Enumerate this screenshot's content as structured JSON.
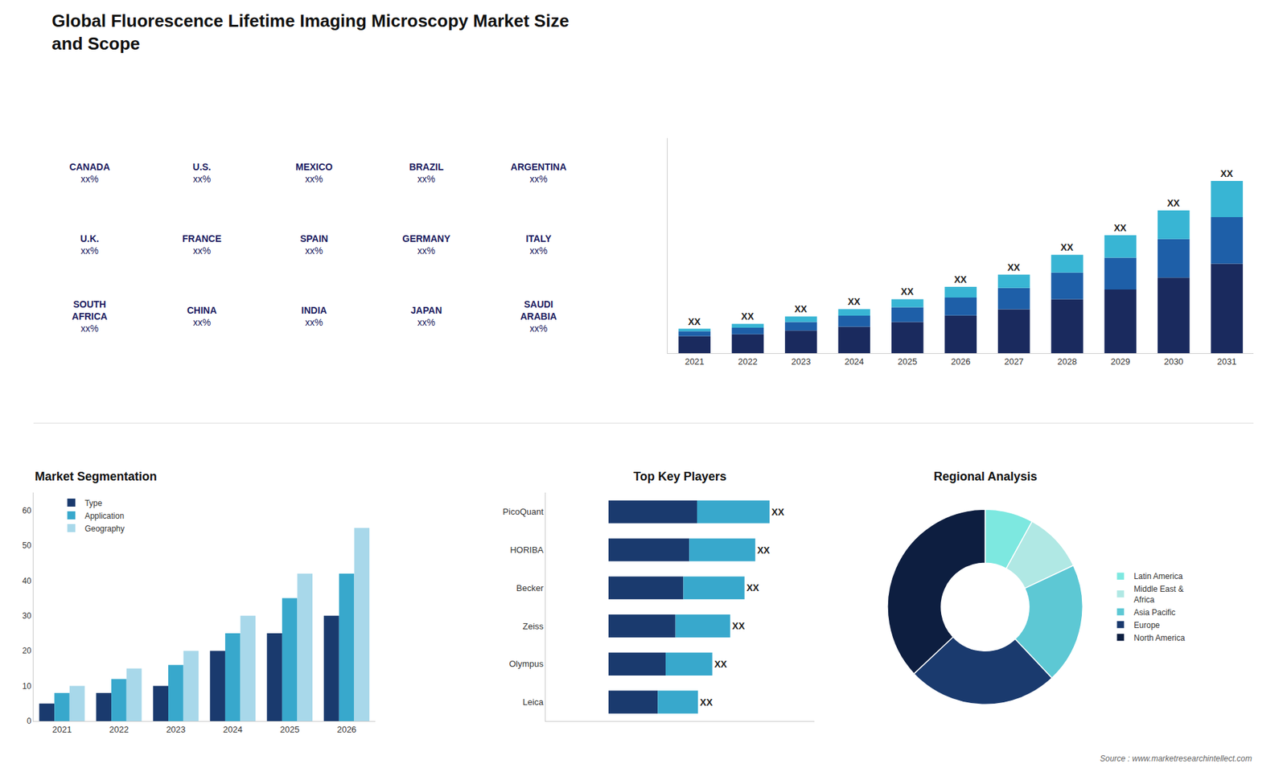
{
  "title": "Global Fluorescence Lifetime Imaging Microscopy Market Size\nand Scope",
  "annotations": [
    "Source : www.marketresearchintellect.com"
  ],
  "chart_data": [
    {
      "type": "map",
      "categories": [
        "CANADA",
        "U.S.",
        "MEXICO",
        "BRAZIL",
        "ARGENTINA",
        "U.K.",
        "FRANCE",
        "SPAIN",
        "GERMANY",
        "ITALY",
        "SOUTH\nAFRICA",
        "CHINA",
        "INDIA",
        "JAPAN",
        "SAUDI\nARABIA"
      ],
      "value_labels": [
        "xx%",
        "xx%",
        "xx%",
        "xx%",
        "xx%",
        "xx%",
        "xx%",
        "xx%",
        "xx%",
        "xx%",
        "xx%",
        "xx%",
        "xx%",
        "xx%",
        "xx%"
      ],
      "tick_labels": false
    },
    {
      "type": "bar",
      "stacked": true,
      "categories": [
        "2021",
        "2022",
        "2023",
        "2024",
        "2025",
        "2026",
        "2027",
        "2028",
        "2029",
        "2030",
        "2031"
      ],
      "series": [
        {
          "color": "#1a2a5e",
          "values": [
            3.5,
            3.9,
            4.65,
            5.4,
            6.38,
            7.695,
            8.96,
            11,
            12.96,
            15.37,
            18.2
          ]
        },
        {
          "color": "#1e5fa8",
          "values": [
            1,
            1.32,
            1.725,
            2.25,
            2.97,
            3.645,
            4.32,
            5.4,
            6.48,
            7.83,
            9.45
          ]
        },
        {
          "color": "#38b5d4",
          "values": [
            0.5,
            0.78,
            1.125,
            1.35,
            1.65,
            2.16,
            2.72,
            3.6,
            4.56,
            5.8,
            7.35
          ]
        }
      ],
      "ylim": [
        0,
        43.75
      ],
      "tick_labels": "x",
      "grid": false,
      "data_labels": true,
      "value_labels": [
        "XX",
        "XX",
        "XX",
        "XX",
        "XX",
        "XX",
        "XX",
        "XX",
        "XX",
        "XX",
        "XX"
      ]
    },
    {
      "type": "bar",
      "title": "Market Segmentation",
      "categories": [
        "2021",
        "2022",
        "2023",
        "2024",
        "2025",
        "2026"
      ],
      "series": [
        {
          "name": "Type",
          "color": "#1a3a6e",
          "values": [
            5,
            8,
            10,
            20,
            25,
            30
          ]
        },
        {
          "name": "Application",
          "color": "#38a8cc",
          "values": [
            8,
            12,
            16,
            25,
            35,
            42
          ]
        },
        {
          "name": "Geography",
          "color": "#a8d8ea",
          "values": [
            10,
            15,
            20,
            30,
            42,
            55
          ]
        }
      ],
      "ylim": [
        0,
        65
      ],
      "yticks": [
        0,
        10,
        20,
        30,
        40,
        50,
        60
      ],
      "legend": "upper left",
      "grid": false
    },
    {
      "type": "bar",
      "title": "Top Key Players",
      "orientation": "horizontal",
      "stacked": true,
      "categories": [
        "PicoQuant",
        "HORIBA",
        "Becker",
        "Zeiss",
        "Olympus",
        "Leica"
      ],
      "series": [
        {
          "color": "#1a3a6e",
          "values": [
            49.5,
            45.1,
            41.8,
            37.4,
            31.9,
            27.5
          ]
        },
        {
          "color": "#38a8cc",
          "values": [
            40.5,
            36.9,
            34.2,
            30.6,
            26.1,
            22.5
          ]
        }
      ],
      "xlim": [
        -35,
        115
      ],
      "tick_labels": "y",
      "grid": false,
      "data_labels": true,
      "value_labels": [
        "XX",
        "XX",
        "XX",
        "XX",
        "XX",
        "XX"
      ]
    },
    {
      "type": "pie",
      "title": "Regional Analysis",
      "categories": [
        "Latin America",
        "Middle East &\nAfrica",
        "Asia Pacific",
        "Europe",
        "North America"
      ],
      "values": [
        8,
        10,
        20,
        25,
        37
      ],
      "colors": [
        "#7de8e0",
        "#b0e8e4",
        "#5dc8d4",
        "#1a3a6e",
        "#0d1e40"
      ],
      "legend": "right"
    }
  ]
}
